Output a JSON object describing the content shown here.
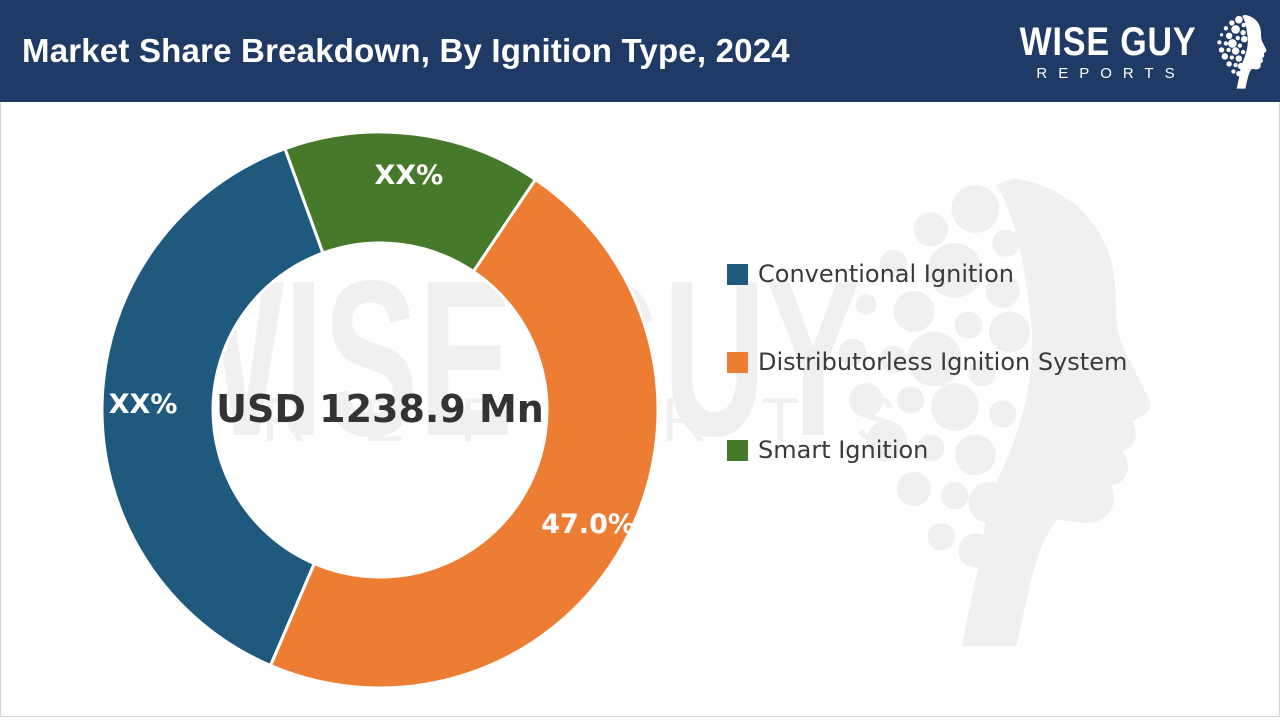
{
  "header": {
    "title": "Market Share Breakdown, By Ignition Type, 2024",
    "background_color": "#203a66",
    "logo": {
      "brand_line1": "WISE GUY",
      "brand_line2": "REPORTS"
    }
  },
  "watermark": {
    "line1": "WISE GUY",
    "line2": "REPORTS"
  },
  "chart_data": {
    "type": "pie",
    "variant": "donut",
    "title": "Market Share Breakdown, By Ignition Type, 2024",
    "center_label": "USD 1238.9 Mn",
    "start_angle_deg": -20,
    "direction": "clockwise",
    "legend_position": "right",
    "segments": [
      {
        "name": "Smart Ignition",
        "value_pct": 15,
        "label": "XX%",
        "color": "#47792b"
      },
      {
        "name": "Distributorless Ignition System",
        "value_pct": 47,
        "label": "47.0%",
        "color": "#ec7d33"
      },
      {
        "name": "Conventional Ignition",
        "value_pct": 38,
        "label": "XX%",
        "color": "#1f5a7e"
      }
    ]
  },
  "legend": {
    "items": [
      {
        "label": "Conventional Ignition",
        "color": "#1f5a7e"
      },
      {
        "label": "Distributorless Ignition System",
        "color": "#ec7d33"
      },
      {
        "label": "Smart Ignition",
        "color": "#47792b"
      }
    ]
  }
}
